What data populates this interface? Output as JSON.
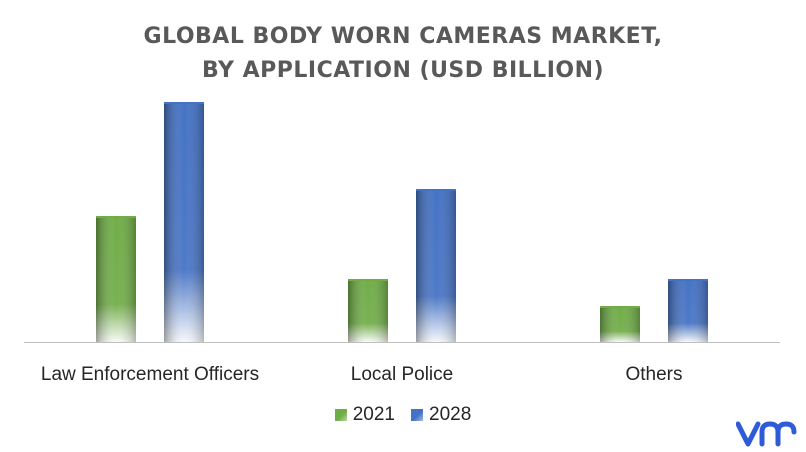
{
  "chart_data": {
    "type": "bar",
    "title": "GLOBAL BODY WORN CAMERAS MARKET,",
    "subtitle": "BY APPLICATION (USD BILLION)",
    "categories": [
      "Law Enforcement Officers",
      "Local Police",
      "Others"
    ],
    "series": [
      {
        "name": "2021",
        "values": [
          4.2,
          2.1,
          1.2
        ],
        "color": "#70AD47"
      },
      {
        "name": "2028",
        "values": [
          8.0,
          5.1,
          2.1
        ],
        "color": "#4472C4"
      }
    ],
    "ylim": [
      0,
      8.2
    ],
    "grid": false,
    "legend_position": "bottom"
  },
  "logo": {
    "name": "vmr-logo",
    "color": "#2E5BD8"
  }
}
